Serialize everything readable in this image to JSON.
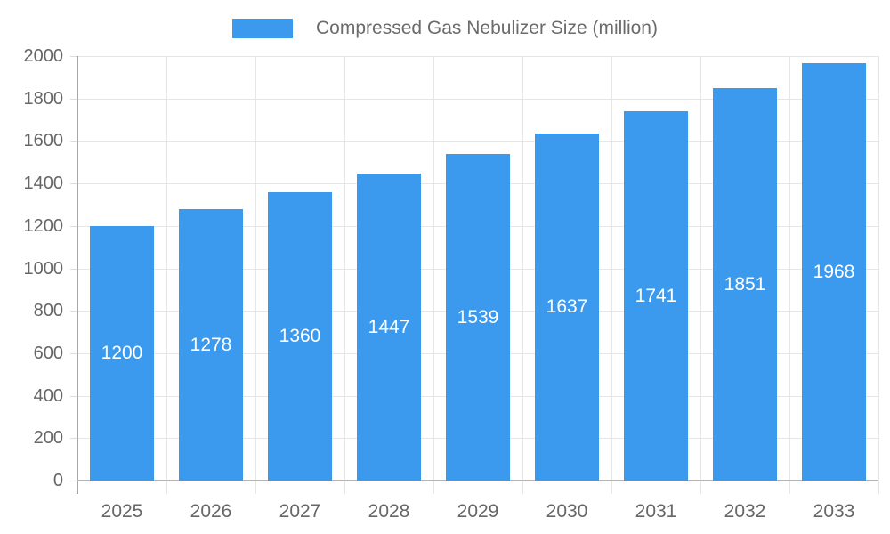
{
  "chart_data": {
    "type": "bar",
    "title": "Compressed Gas Nebulizer Size (million)",
    "legend_label": "Compressed Gas Nebulizer Size (million)",
    "legend_position": "top",
    "categories": [
      "2025",
      "2026",
      "2027",
      "2028",
      "2029",
      "2030",
      "2031",
      "2032",
      "2033"
    ],
    "series": [
      {
        "name": "Compressed Gas Nebulizer Size (million)",
        "values": [
          1200,
          1278,
          1360,
          1447,
          1539,
          1637,
          1741,
          1851,
          1968
        ]
      }
    ],
    "bar_value_labels": [
      "1200",
      "1278",
      "1360",
      "1447",
      "1539",
      "1637",
      "1741",
      "1851",
      "1968"
    ],
    "bar_label_position": "inside-center",
    "xlabel": "",
    "ylabel": "",
    "ylim": [
      0,
      2000
    ],
    "ytick_step": 200,
    "ytick_labels": [
      "0",
      "200",
      "400",
      "600",
      "800",
      "1000",
      "1200",
      "1400",
      "1600",
      "1800",
      "2000"
    ],
    "grid": true,
    "colors": {
      "bar": "#3b99ee",
      "bar_label_text": "#ffffff",
      "grid_line": "#e6e6e6",
      "axis_line": "#a6a6a6",
      "tick_text": "#666666",
      "legend_text": "#6b6b6b",
      "background": "#ffffff"
    }
  }
}
